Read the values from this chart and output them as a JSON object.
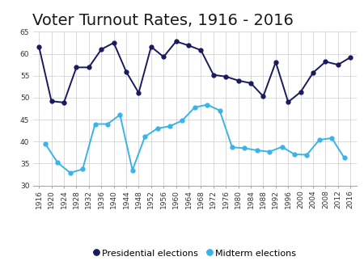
{
  "title": "Voter Turnout Rates, 1916 - 2016",
  "presidential_years": [
    1916,
    1920,
    1924,
    1928,
    1932,
    1936,
    1940,
    1944,
    1948,
    1952,
    1956,
    1960,
    1964,
    1968,
    1972,
    1976,
    1980,
    1984,
    1988,
    1992,
    1996,
    2000,
    2004,
    2008,
    2012,
    2016
  ],
  "presidential_values": [
    61.6,
    49.2,
    48.9,
    56.9,
    56.9,
    61.0,
    62.5,
    55.9,
    51.1,
    61.6,
    59.3,
    62.8,
    61.9,
    60.8,
    55.2,
    54.8,
    53.9,
    53.3,
    50.3,
    58.1,
    49.0,
    51.3,
    55.7,
    58.2,
    57.5,
    59.2
  ],
  "midterm_years": [
    1918,
    1922,
    1926,
    1930,
    1934,
    1938,
    1942,
    1946,
    1950,
    1954,
    1958,
    1962,
    1966,
    1970,
    1974,
    1978,
    1982,
    1986,
    1990,
    1994,
    1998,
    2002,
    2006,
    2010,
    2014
  ],
  "midterm_values": [
    39.5,
    35.2,
    32.9,
    33.7,
    44.0,
    44.0,
    46.1,
    33.5,
    41.1,
    43.0,
    43.5,
    44.8,
    47.8,
    48.4,
    47.1,
    38.7,
    38.5,
    38.0,
    37.7,
    38.8,
    37.1,
    37.0,
    40.4,
    40.8,
    36.3
  ],
  "presidential_color": "#1a1a5e",
  "midterm_color": "#3ab4e8",
  "ylim": [
    30,
    65
  ],
  "yticks": [
    30,
    35,
    40,
    45,
    50,
    55,
    60,
    65
  ],
  "xticks": [
    1916,
    1920,
    1924,
    1928,
    1932,
    1936,
    1940,
    1944,
    1948,
    1952,
    1956,
    1960,
    1964,
    1968,
    1972,
    1976,
    1980,
    1984,
    1988,
    1992,
    1996,
    2000,
    2004,
    2008,
    2012,
    2016
  ],
  "legend_labels": [
    "Presidential elections",
    "Midterm elections"
  ],
  "background_color": "#ffffff",
  "grid_color": "#cccccc",
  "title_fontsize": 14,
  "tick_fontsize": 6.5,
  "legend_fontsize": 8
}
